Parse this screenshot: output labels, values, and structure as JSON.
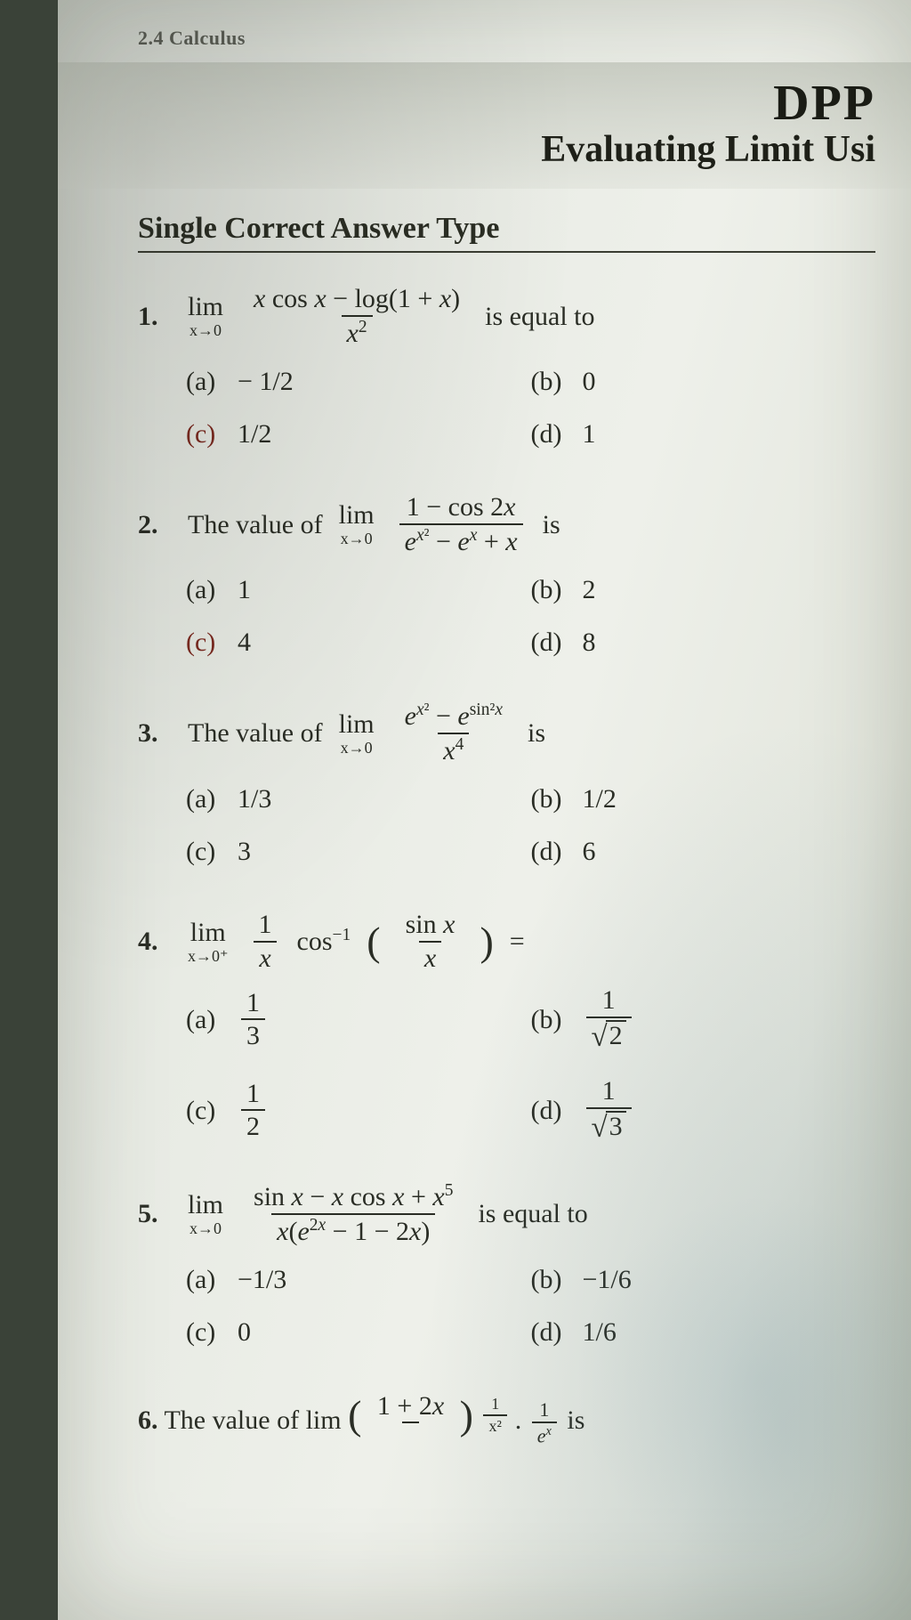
{
  "section_label": "2.4  Calculus",
  "header": {
    "dpp": "DPP",
    "subtitle": "Evaluating Limit Usi"
  },
  "answer_type_heading": "Single Correct Answer Type",
  "questions": [
    {
      "num": "1.",
      "stem_prefix": "",
      "limit_sub": "x→0",
      "frac_num": "x cos x − log(1 + x)",
      "frac_den": "x²",
      "stem_suffix": "is equal to",
      "options": [
        {
          "lab": "(a)",
          "val": "− 1/2"
        },
        {
          "lab": "(b)",
          "val": "0"
        },
        {
          "lab": "(c)",
          "val": "1/2",
          "marked": true
        },
        {
          "lab": "(d)",
          "val": "1"
        }
      ]
    },
    {
      "num": "2.",
      "stem_prefix": "The value of",
      "limit_sub": "x→0",
      "frac_num": "1 − cos 2x",
      "frac_den": "eˣ² − eˣ + x",
      "stem_suffix": "is",
      "options": [
        {
          "lab": "(a)",
          "val": "1"
        },
        {
          "lab": "(b)",
          "val": "2"
        },
        {
          "lab": "(c)",
          "val": "4",
          "marked": true
        },
        {
          "lab": "(d)",
          "val": "8"
        }
      ]
    },
    {
      "num": "3.",
      "stem_prefix": "The value of",
      "limit_sub": "x→0",
      "frac_num": "eˣ² − e^{sin²x}",
      "frac_den": "x⁴",
      "stem_suffix": "is",
      "options": [
        {
          "lab": "(a)",
          "val": "1/3"
        },
        {
          "lab": "(b)",
          "val": "1/2"
        },
        {
          "lab": "(c)",
          "val": "3"
        },
        {
          "lab": "(d)",
          "val": "6"
        }
      ]
    },
    {
      "num": "4.",
      "stem_prefix": "",
      "limit_sub": "x→0⁺",
      "body_html": "q4",
      "stem_suffix": "=",
      "options_frac": [
        {
          "lab": "(a)",
          "num": "1",
          "den": "3"
        },
        {
          "lab": "(b)",
          "num": "1",
          "den_sqrt": "2"
        },
        {
          "lab": "(c)",
          "num": "1",
          "den": "2"
        },
        {
          "lab": "(d)",
          "num": "1",
          "den_sqrt": "3"
        }
      ]
    },
    {
      "num": "5.",
      "stem_prefix": "",
      "limit_sub": "x→0",
      "frac_num": "sin x − x cos x + x⁵",
      "frac_den": "x(e²ˣ − 1 − 2x)",
      "stem_suffix": "is equal to",
      "options": [
        {
          "lab": "(a)",
          "val": "−1/3"
        },
        {
          "lab": "(b)",
          "val": "−1/6"
        },
        {
          "lab": "(c)",
          "val": "0"
        },
        {
          "lab": "(d)",
          "val": "1/6"
        }
      ]
    }
  ],
  "partial_q6": {
    "num": "6.",
    "text_before": "The value of lim",
    "frac_num": "1 + 2x",
    "exp_outer": "1",
    "exp_outer_den": "x²",
    "tail": ". eˣ  is"
  },
  "colors": {
    "paper_bg_start": "#d8dcd5",
    "paper_bg_end": "#c9cfc2",
    "text": "#2a2d25",
    "marked": "#7a2a20",
    "outer_bg": "#3a4238"
  },
  "fontsizes": {
    "dpp": 56,
    "subtitle": 42,
    "heading": 34,
    "body": 30,
    "lim_sub": 18
  }
}
